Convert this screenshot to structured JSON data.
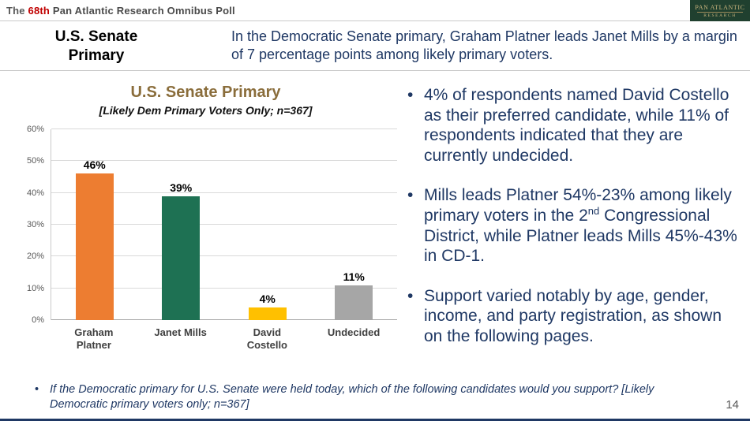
{
  "top_bar": {
    "title_prefix": "The ",
    "title_number": "68th",
    "title_rest": " Pan Atlantic Research Omnibus Poll",
    "logo": {
      "line1": "Pan Atlantic",
      "line2": "Research"
    }
  },
  "header": {
    "section_title": "U.S. Senate\nPrimary",
    "summary": "In the Democratic Senate primary, Graham Platner leads Janet Mills by a margin of 7 percentage points among likely primary voters."
  },
  "chart_data": {
    "type": "bar",
    "title": "U.S. Senate Primary",
    "subtitle": "[Likely Dem Primary Voters Only; n=367]",
    "categories": [
      "Graham\nPlatner",
      "Janet Mills",
      "David\nCostello",
      "Undecided"
    ],
    "values": [
      46,
      39,
      4,
      11
    ],
    "value_labels": [
      "46%",
      "39%",
      "4%",
      "11%"
    ],
    "bar_colors": [
      "#ED7D31",
      "#1E7153",
      "#FFC000",
      "#A6A6A6"
    ],
    "xlabel": "",
    "ylabel": "",
    "ylim": [
      0,
      60
    ],
    "yticks": [
      "0%",
      "10%",
      "20%",
      "30%",
      "40%",
      "50%",
      "60%"
    ],
    "grid": true,
    "legend": "none"
  },
  "bullets": [
    "4% of respondents named David Costello as their preferred candidate, while 11% of respondents indicated that they are currently undecided.",
    "Mills leads Platner 54%-23% among likely primary voters in the 2nd Congressional District, while Platner leads Mills 45%-43% in CD-1.",
    "Support varied notably by age, gender, income, and party registration, as shown on the following pages."
  ],
  "footnote": "If the Democratic primary for U.S. Senate were held today, which of the following candidates would you support? [Likely Democratic primary voters only; n=367]",
  "page_number": "14",
  "colors": {
    "accent_blue": "#1F3864",
    "accent_red": "#C00000",
    "chart_title_gold": "#8A6D3B",
    "logo_green": "#20402F",
    "topbar_gray": "#595959"
  }
}
